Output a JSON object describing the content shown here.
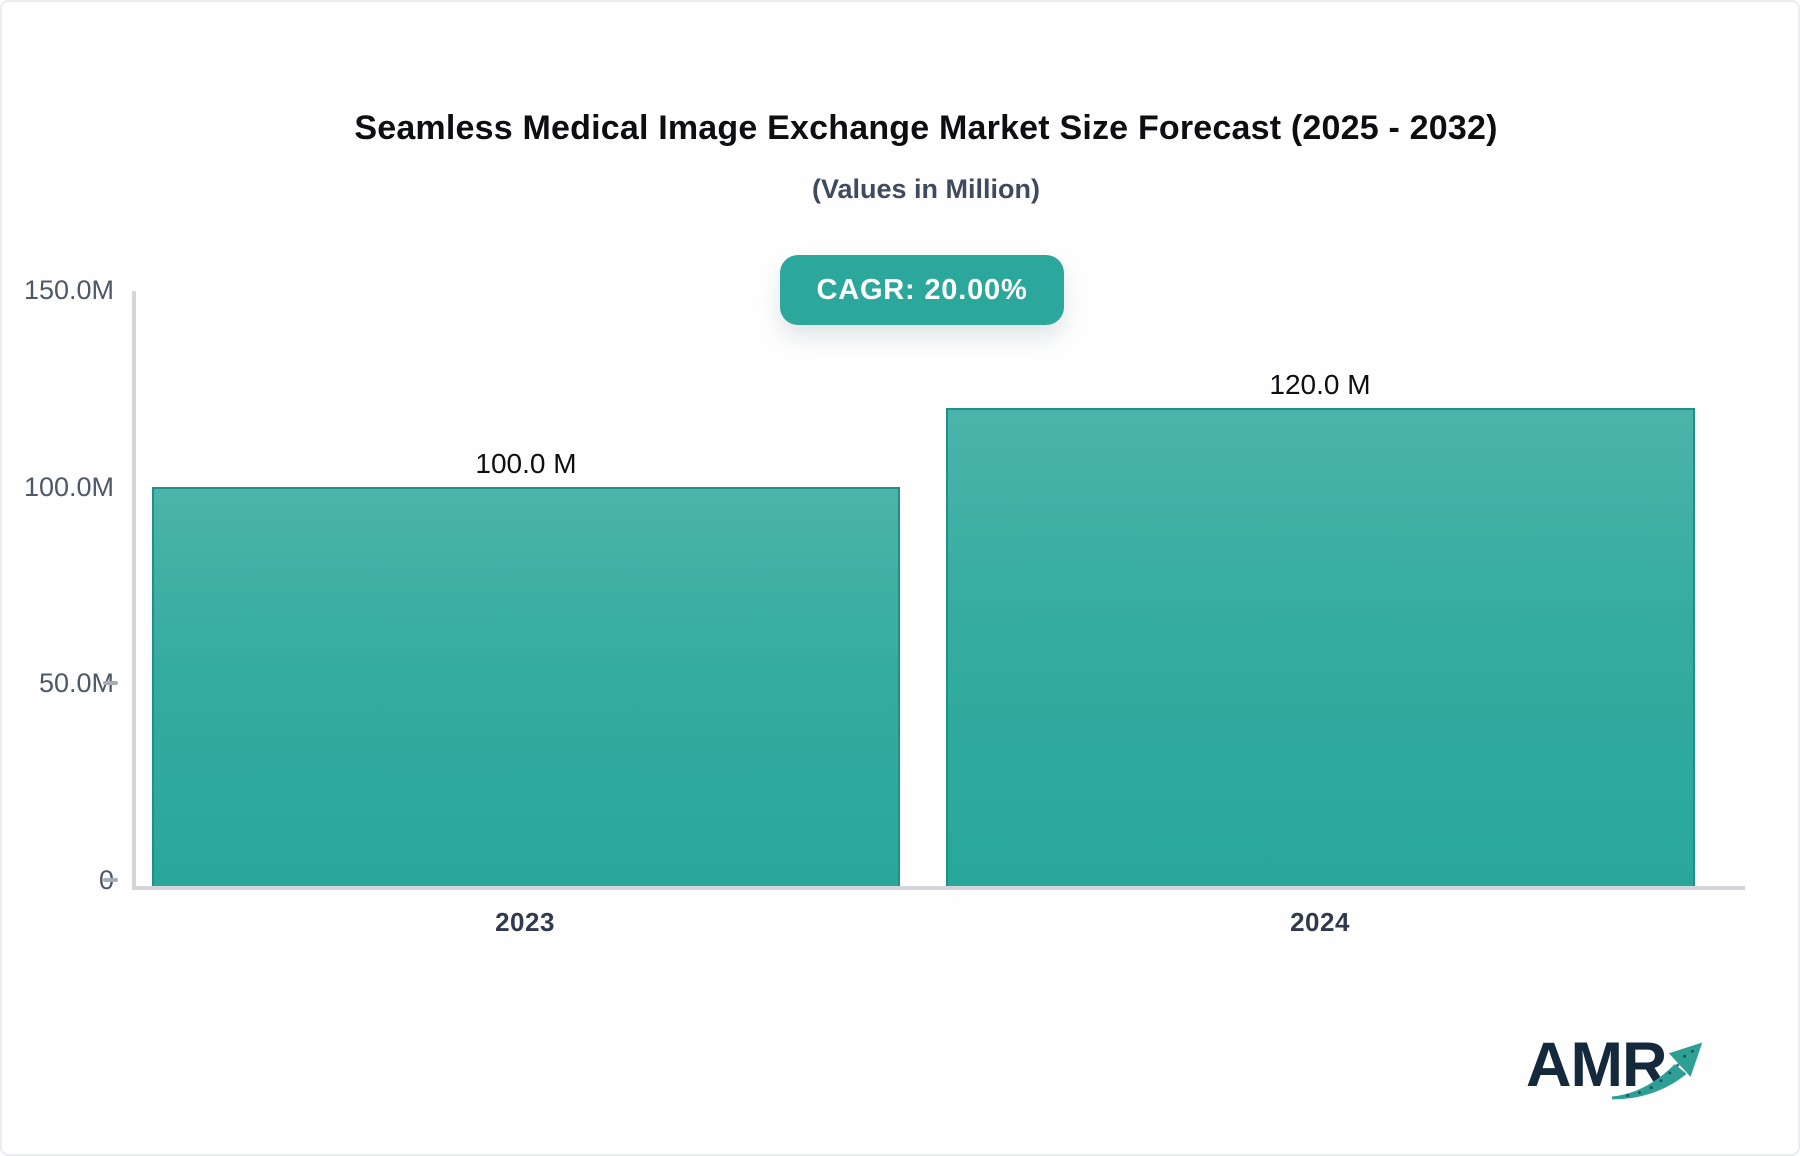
{
  "chart_data": {
    "type": "bar",
    "title": "Seamless Medical Image Exchange Market Size Forecast (2025 - 2032)",
    "subtitle": "(Values in Million)",
    "badge": "CAGR: 20.00%",
    "categories": [
      "2023",
      "2024"
    ],
    "values": [
      100.0,
      120.0
    ],
    "bar_labels": [
      "100.0 M",
      "120.0 M"
    ],
    "yticks": [
      {
        "value": 150,
        "label": "150.0M"
      },
      {
        "value": 100,
        "label": "100.0M"
      },
      {
        "value": 50,
        "label": "50.0M"
      },
      {
        "value": 0,
        "label": "0"
      }
    ],
    "ylim": [
      0,
      150
    ],
    "grid": false,
    "legend": null,
    "colors": {
      "bar_fill_top": "#4bb4aa",
      "bar_fill_bottom": "#29a79b",
      "bar_border": "#1f9089",
      "badge_background": "#2ca79b",
      "badge_text": "#ffffff",
      "axis_line": "#d4d6db",
      "tick_mark": "#a7adb5",
      "title_text": "#0c0e12",
      "subtitle_text": "#3e4a5e",
      "y_label_text": "#4d5966",
      "x_label_text": "#2f3b4d"
    }
  },
  "branding": {
    "logo_text": "AMR",
    "logo_icon": "trend-up-arrow",
    "logo_text_color": "#15293d",
    "logo_arrow_color": "#2d9f94"
  }
}
